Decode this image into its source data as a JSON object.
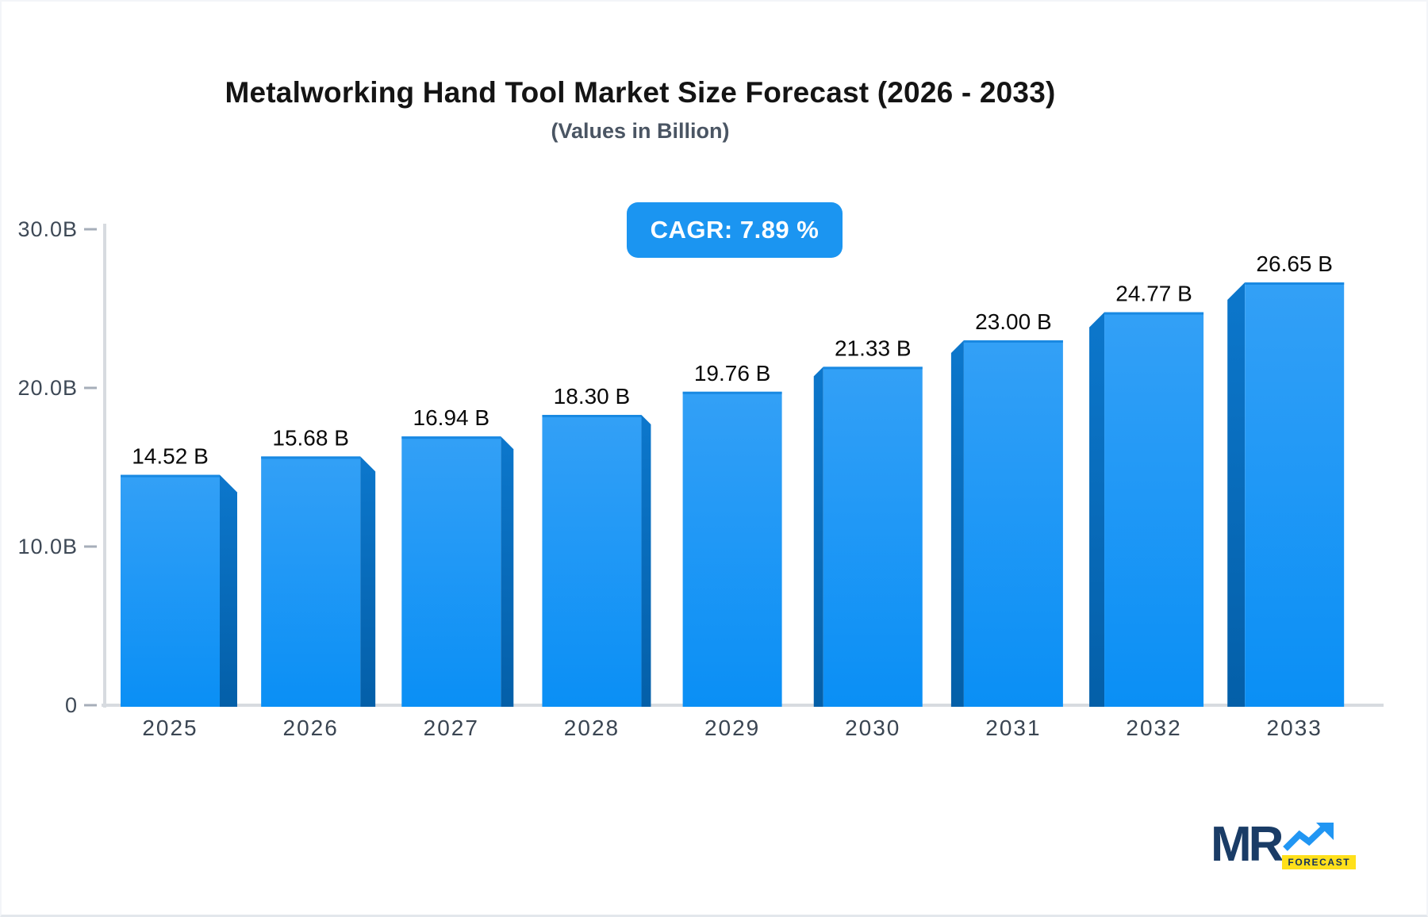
{
  "header": {
    "title": "Metalworking Hand Tool Market Size Forecast (2026 - 2033)",
    "subtitle": "(Values in Billion)"
  },
  "badge": {
    "label": "CAGR: 7.89 %"
  },
  "chart_data": {
    "type": "bar",
    "title": "Metalworking Hand Tool Market Size Forecast (2026 - 2033)",
    "subtitle": "(Values in Billion)",
    "cagr_percent": 7.89,
    "categories": [
      "2025",
      "2026",
      "2027",
      "2028",
      "2029",
      "2030",
      "2031",
      "2032",
      "2033"
    ],
    "values": [
      14.52,
      15.68,
      16.94,
      18.3,
      19.76,
      21.33,
      23.0,
      24.77,
      26.65
    ],
    "value_suffix": " B",
    "xlabel": "",
    "ylabel": "",
    "ylim": [
      0,
      30
    ],
    "yticks": [
      {
        "value": 0,
        "label": "0"
      },
      {
        "value": 10,
        "label": "10.0B"
      },
      {
        "value": 20,
        "label": "20.0B"
      },
      {
        "value": 30,
        "label": "30.0B"
      }
    ],
    "grid": false,
    "legend": false,
    "style": "pseudo-3d-bars",
    "colors": {
      "bar_face_top": "#33a0f6",
      "bar_face_bottom": "#0a8ff5",
      "bar_face_edge": "#1585de",
      "bar_side_top": "#0c77cc",
      "bar_side_bottom": "#045fa8",
      "axis_line": "#d7dbe0",
      "tick_dash": "#a6aeb9",
      "tick_label": "#3e4956",
      "value_label": "#0a0a0a",
      "year_label": "#3a4552"
    }
  },
  "logo": {
    "text": "MR",
    "sub": "FORECAST",
    "arrow_icon": "trend-up-arrow",
    "colors": {
      "navy": "#1a3c66",
      "blue": "#2196f3",
      "yellow": "#ffe01b"
    }
  }
}
